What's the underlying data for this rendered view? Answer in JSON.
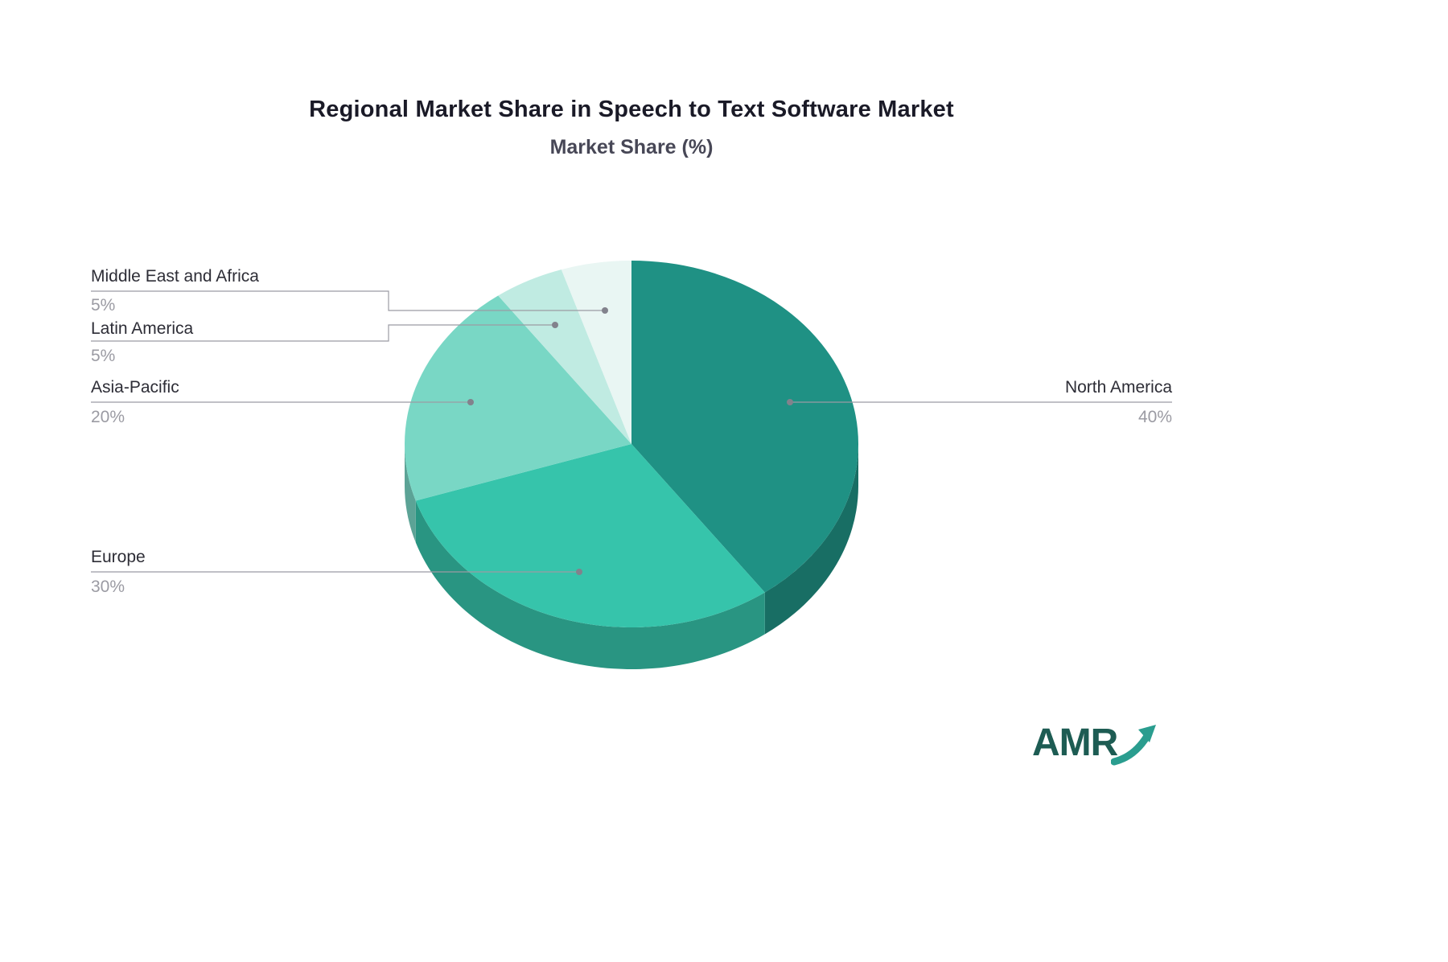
{
  "title": "Regional Market Share in Speech to Text Software Market",
  "subtitle": "Market Share (%)",
  "chart_data": {
    "type": "pie",
    "title": "Regional Market Share in Speech to Text Software Market",
    "subtitle": "Market Share (%)",
    "unit": "percent",
    "direction": "clockwise",
    "start_angle_deg": 0,
    "legend_position": "none",
    "labels_style": "callout",
    "effect": "3d-depth",
    "slices": [
      {
        "label": "North America",
        "value": 40,
        "display": "40%",
        "color": "#1f9184"
      },
      {
        "label": "Europe",
        "value": 30,
        "display": "30%",
        "color": "#36c4ab"
      },
      {
        "label": "Asia-Pacific",
        "value": 20,
        "display": "20%",
        "color": "#79d7c5"
      },
      {
        "label": "Latin America",
        "value": 5,
        "display": "5%",
        "color": "#c0ebe2"
      },
      {
        "label": "Middle East and Africa",
        "value": 5,
        "display": "5%",
        "color": "#e9f6f3"
      }
    ]
  },
  "logo": {
    "text": "AMR"
  },
  "colors": {
    "background": "#ffffff",
    "title": "#1a1a27",
    "subtitle": "#474756",
    "label_text": "#2d2d36",
    "pct_text": "#9b9ba3",
    "leader_line": "#9b9ba3",
    "dot": "#82828c",
    "logo_text": "#1d5c53",
    "logo_arrow": "#2a9d8f"
  }
}
